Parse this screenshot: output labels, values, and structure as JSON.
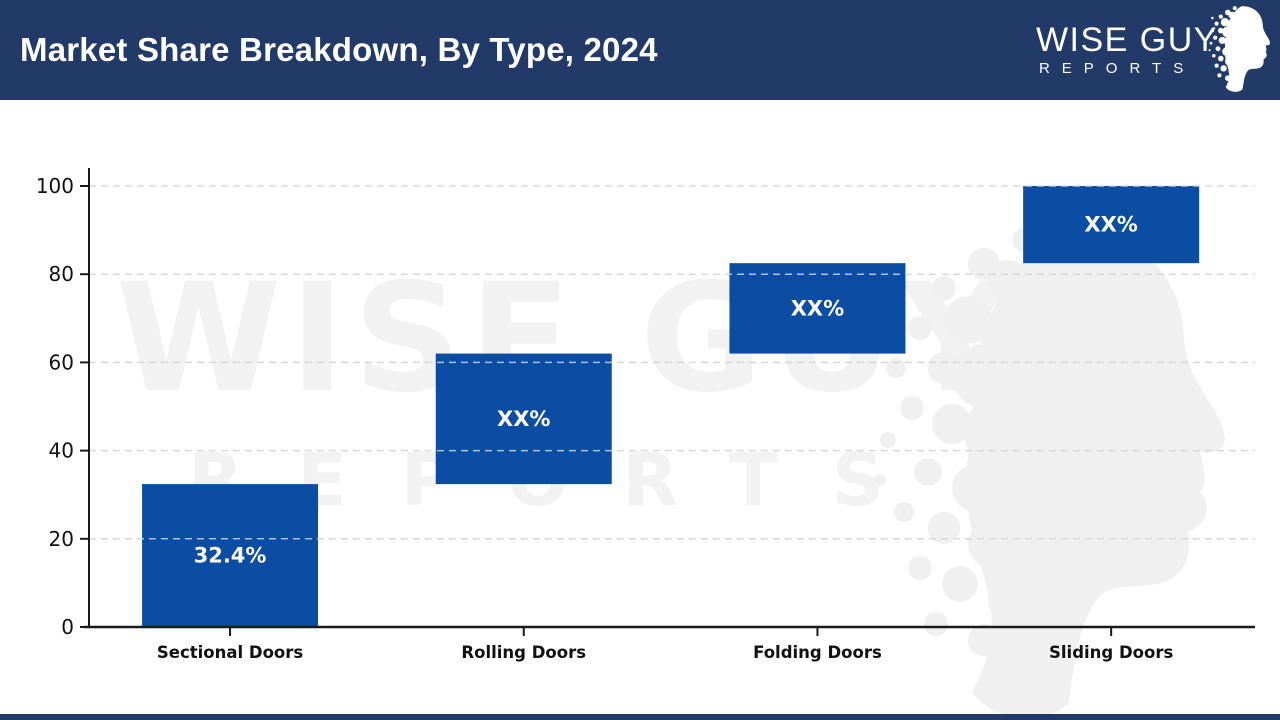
{
  "header": {
    "title": "Market Share Breakdown, By Type, 2024",
    "logo": {
      "name": "WISE GUY",
      "sub": "REPORTS"
    }
  },
  "watermark": {
    "line1": "WISE GUY",
    "line2": "REPORTS"
  },
  "chart_data": {
    "type": "bar",
    "subtype": "waterfall",
    "title": "Market Share Breakdown, By Type, 2024",
    "xlabel": "",
    "ylabel": "",
    "categories": [
      "Sectional Doors",
      "Rolling Doors",
      "Folding Doors",
      "Sliding Doors"
    ],
    "segments": [
      {
        "category": "Sectional Doors",
        "start": 0,
        "end": 32.4,
        "value": 32.4,
        "label": "32.4%"
      },
      {
        "category": "Rolling Doors",
        "start": 32.4,
        "end": 62.0,
        "value": 29.6,
        "label": "XX%"
      },
      {
        "category": "Folding Doors",
        "start": 62.0,
        "end": 82.5,
        "value": 20.5,
        "label": "XX%"
      },
      {
        "category": "Sliding Doors",
        "start": 82.5,
        "end": 100,
        "value": 17.5,
        "label": "XX%"
      }
    ],
    "ylim": [
      0,
      100
    ],
    "yticks": [
      0,
      20,
      40,
      60,
      80,
      100
    ],
    "grid": "horizontal dashed, drawn over bars",
    "legend": "none",
    "bar_color": "#0b4da2",
    "bar_label_color": "#ffffff",
    "axis_color": "#1a1a1a",
    "grid_color": "#d4d4d4"
  },
  "colors": {
    "header_bg": "#213a67",
    "footer_bg": "#213a67",
    "background": "#ffffff",
    "watermark": "#f0f0f0"
  }
}
